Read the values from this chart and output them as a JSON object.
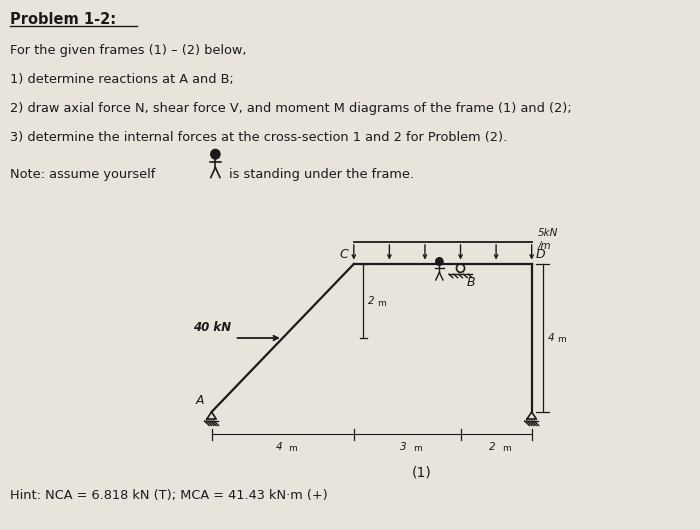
{
  "title_line1": "Problem 1-2:",
  "text_lines": [
    "For the given frames (1) – (2) below,",
    "1) determine reactions at A and B;",
    "2) draw axial force N, shear force V, and moment M diagrams of the frame (1) and (2);",
    "3) determine the internal forces at the cross-section 1 and 2 for Problem (2)."
  ],
  "note_text": "Note: assume yourself",
  "note_text2": "is standing under the frame.",
  "hint_text": "Hint: NCA = 6.818 kN (T); MCA = 41.43 kN·m (+)",
  "label_1": "(1)",
  "bg_color": "#e8e4dc",
  "frame_color": "#1a1a1a",
  "s": 0.37,
  "ox": 2.2,
  "oy": 1.18
}
